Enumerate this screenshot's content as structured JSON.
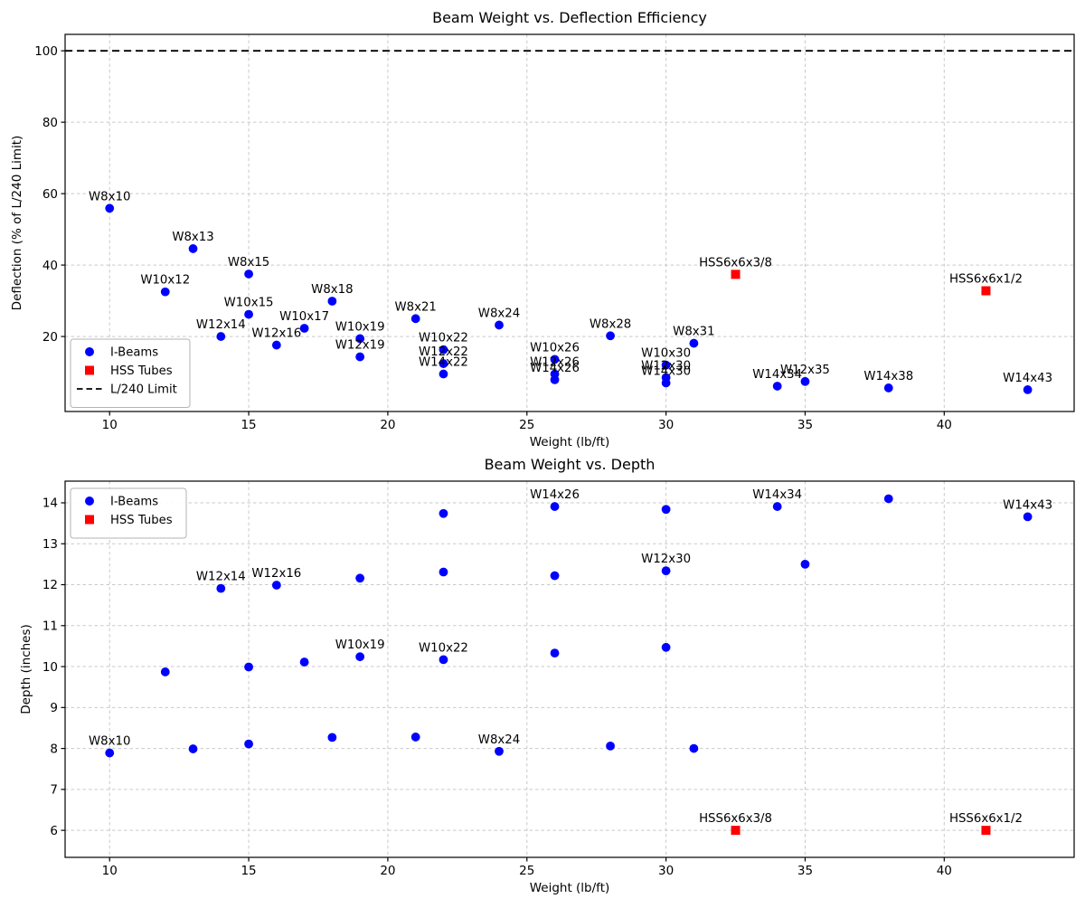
{
  "figure_title": "",
  "chart_data": [
    {
      "id": "deflection",
      "type": "scatter",
      "title": "Beam Weight vs. Deflection Efficiency",
      "xlabel": "Weight (lb/ft)",
      "ylabel": "Deflection (% of L/240 Limit)",
      "xlim": [
        8.4,
        44.67
      ],
      "ylim": [
        -1.0,
        104.6
      ],
      "xticks": [
        10,
        15,
        20,
        25,
        30,
        35,
        40
      ],
      "yticks": [
        20,
        40,
        60,
        80,
        100
      ],
      "grid": true,
      "grid_color": "#c9c9c9",
      "legend_position": "lower-left",
      "legend": [
        {
          "label": "I-Beams",
          "marker": "circle",
          "color": "#0000ff"
        },
        {
          "label": "HSS Tubes",
          "marker": "square",
          "color": "#ff0000"
        },
        {
          "label": "L/240 Limit",
          "marker": "dashed-line",
          "color": "#000000"
        }
      ],
      "limit_line": {
        "y": 100,
        "color": "#000000",
        "style": "dashed",
        "label": "L/240 Limit"
      },
      "series": [
        {
          "name": "I-Beams",
          "marker": "circle",
          "color": "#0000ff",
          "points": [
            {
              "x": 10,
              "y": 55.9,
              "label": "W8x10",
              "labeled": true
            },
            {
              "x": 12,
              "y": 32.5,
              "label": "W10x12",
              "labeled": true
            },
            {
              "x": 13,
              "y": 44.6,
              "label": "W8x13",
              "labeled": true
            },
            {
              "x": 14,
              "y": 20.0,
              "label": "W12x14",
              "labeled": true
            },
            {
              "x": 15,
              "y": 37.5,
              "label": "W8x15",
              "labeled": true
            },
            {
              "x": 15,
              "y": 26.2,
              "label": "W10x15",
              "labeled": true
            },
            {
              "x": 16,
              "y": 17.6,
              "label": "W12x16",
              "labeled": true
            },
            {
              "x": 17,
              "y": 22.3,
              "label": "W10x17",
              "labeled": true
            },
            {
              "x": 18,
              "y": 29.9,
              "label": "W8x18",
              "labeled": true
            },
            {
              "x": 19,
              "y": 19.4,
              "label": "W10x19",
              "labeled": true
            },
            {
              "x": 19,
              "y": 14.3,
              "label": "W12x19",
              "labeled": true
            },
            {
              "x": 21,
              "y": 25.0,
              "label": "W8x21",
              "labeled": true
            },
            {
              "x": 22,
              "y": 16.3,
              "label": "W10x22",
              "labeled": true
            },
            {
              "x": 22,
              "y": 12.4,
              "label": "W12x22",
              "labeled": true
            },
            {
              "x": 22,
              "y": 9.5,
              "label": "W14x22",
              "labeled": true
            },
            {
              "x": 24,
              "y": 23.2,
              "label": "W8x24",
              "labeled": true
            },
            {
              "x": 26,
              "y": 13.6,
              "label": "W10x26",
              "labeled": true
            },
            {
              "x": 26,
              "y": 9.5,
              "label": "W12x26",
              "labeled": true
            },
            {
              "x": 26,
              "y": 7.9,
              "label": "W14x26",
              "labeled": true
            },
            {
              "x": 28,
              "y": 20.2,
              "label": "W8x28",
              "labeled": true
            },
            {
              "x": 30,
              "y": 12.0,
              "label": "W10x30",
              "labeled": true
            },
            {
              "x": 30,
              "y": 8.5,
              "label": "W12x30",
              "labeled": true
            },
            {
              "x": 30,
              "y": 7.0,
              "label": "W14x30",
              "labeled": true
            },
            {
              "x": 31,
              "y": 18.1,
              "label": "W8x31",
              "labeled": true
            },
            {
              "x": 34,
              "y": 6.1,
              "label": "W14x34",
              "labeled": true
            },
            {
              "x": 35,
              "y": 7.4,
              "label": "W12x35",
              "labeled": true
            },
            {
              "x": 38,
              "y": 5.6,
              "label": "W14x38",
              "labeled": true
            },
            {
              "x": 43,
              "y": 5.1,
              "label": "W14x43",
              "labeled": true
            }
          ]
        },
        {
          "name": "HSS Tubes",
          "marker": "square",
          "color": "#ff0000",
          "points": [
            {
              "x": 32.5,
              "y": 37.4,
              "label": "HSS6x6x3/8",
              "labeled": true
            },
            {
              "x": 41.5,
              "y": 32.8,
              "label": "HSS6x6x1/2",
              "labeled": true
            }
          ]
        }
      ]
    },
    {
      "id": "depth",
      "type": "scatter",
      "title": "Beam Weight vs. Depth",
      "xlabel": "Weight (lb/ft)",
      "ylabel": "Depth (inches)",
      "xlim": [
        8.4,
        44.67
      ],
      "ylim": [
        5.34,
        14.53
      ],
      "xticks": [
        10,
        15,
        20,
        25,
        30,
        35,
        40
      ],
      "yticks": [
        6,
        7,
        8,
        9,
        10,
        11,
        12,
        13,
        14
      ],
      "grid": true,
      "grid_color": "#c9c9c9",
      "legend_position": "upper-left",
      "legend": [
        {
          "label": "I-Beams",
          "marker": "circle",
          "color": "#0000ff"
        },
        {
          "label": "HSS Tubes",
          "marker": "square",
          "color": "#ff0000"
        }
      ],
      "limit_line": null,
      "series": [
        {
          "name": "I-Beams",
          "marker": "circle",
          "color": "#0000ff",
          "points": [
            {
              "x": 10,
              "y": 7.89,
              "label": "W8x10",
              "labeled": true
            },
            {
              "x": 12,
              "y": 9.87,
              "label": "W10x12",
              "labeled": false
            },
            {
              "x": 13,
              "y": 7.99,
              "label": "W8x13",
              "labeled": false
            },
            {
              "x": 14,
              "y": 11.91,
              "label": "W12x14",
              "labeled": true
            },
            {
              "x": 15,
              "y": 8.11,
              "label": "W8x15",
              "labeled": false
            },
            {
              "x": 15,
              "y": 9.99,
              "label": "W10x15",
              "labeled": false
            },
            {
              "x": 16,
              "y": 11.99,
              "label": "W12x16",
              "labeled": true
            },
            {
              "x": 17,
              "y": 10.11,
              "label": "W10x17",
              "labeled": false
            },
            {
              "x": 18,
              "y": 8.27,
              "label": "W8x18",
              "labeled": false
            },
            {
              "x": 19,
              "y": 10.24,
              "label": "W10x19",
              "labeled": true
            },
            {
              "x": 19,
              "y": 12.16,
              "label": "W12x19",
              "labeled": false
            },
            {
              "x": 21,
              "y": 8.28,
              "label": "W8x21",
              "labeled": false
            },
            {
              "x": 22,
              "y": 10.17,
              "label": "W10x22",
              "labeled": true
            },
            {
              "x": 22,
              "y": 12.31,
              "label": "W12x22",
              "labeled": false
            },
            {
              "x": 22,
              "y": 13.74,
              "label": "W14x22",
              "labeled": false
            },
            {
              "x": 24,
              "y": 7.93,
              "label": "W8x24",
              "labeled": true
            },
            {
              "x": 26,
              "y": 10.33,
              "label": "W10x26",
              "labeled": false
            },
            {
              "x": 26,
              "y": 12.22,
              "label": "W12x26",
              "labeled": false
            },
            {
              "x": 26,
              "y": 13.91,
              "label": "W14x26",
              "labeled": true
            },
            {
              "x": 28,
              "y": 8.06,
              "label": "W8x28",
              "labeled": false
            },
            {
              "x": 30,
              "y": 10.47,
              "label": "W10x30",
              "labeled": false
            },
            {
              "x": 30,
              "y": 12.34,
              "label": "W12x30",
              "labeled": true
            },
            {
              "x": 30,
              "y": 13.84,
              "label": "W14x30",
              "labeled": false
            },
            {
              "x": 31,
              "y": 8.0,
              "label": "W8x31",
              "labeled": false
            },
            {
              "x": 34,
              "y": 13.91,
              "label": "W14x34",
              "labeled": true
            },
            {
              "x": 35,
              "y": 12.5,
              "label": "W12x35",
              "labeled": false
            },
            {
              "x": 38,
              "y": 14.1,
              "label": "W14x38",
              "labeled": false
            },
            {
              "x": 43,
              "y": 13.66,
              "label": "W14x43",
              "labeled": true
            }
          ]
        },
        {
          "name": "HSS Tubes",
          "marker": "square",
          "color": "#ff0000",
          "points": [
            {
              "x": 32.5,
              "y": 6.0,
              "label": "HSS6x6x3/8",
              "labeled": true
            },
            {
              "x": 41.5,
              "y": 6.0,
              "label": "HSS6x6x1/2",
              "labeled": true
            }
          ]
        }
      ]
    }
  ],
  "colors": {
    "ibeam": "#0000ff",
    "hss": "#ff0000",
    "limit": "#000000",
    "grid": "#c9c9c9",
    "background": "#ffffff"
  }
}
